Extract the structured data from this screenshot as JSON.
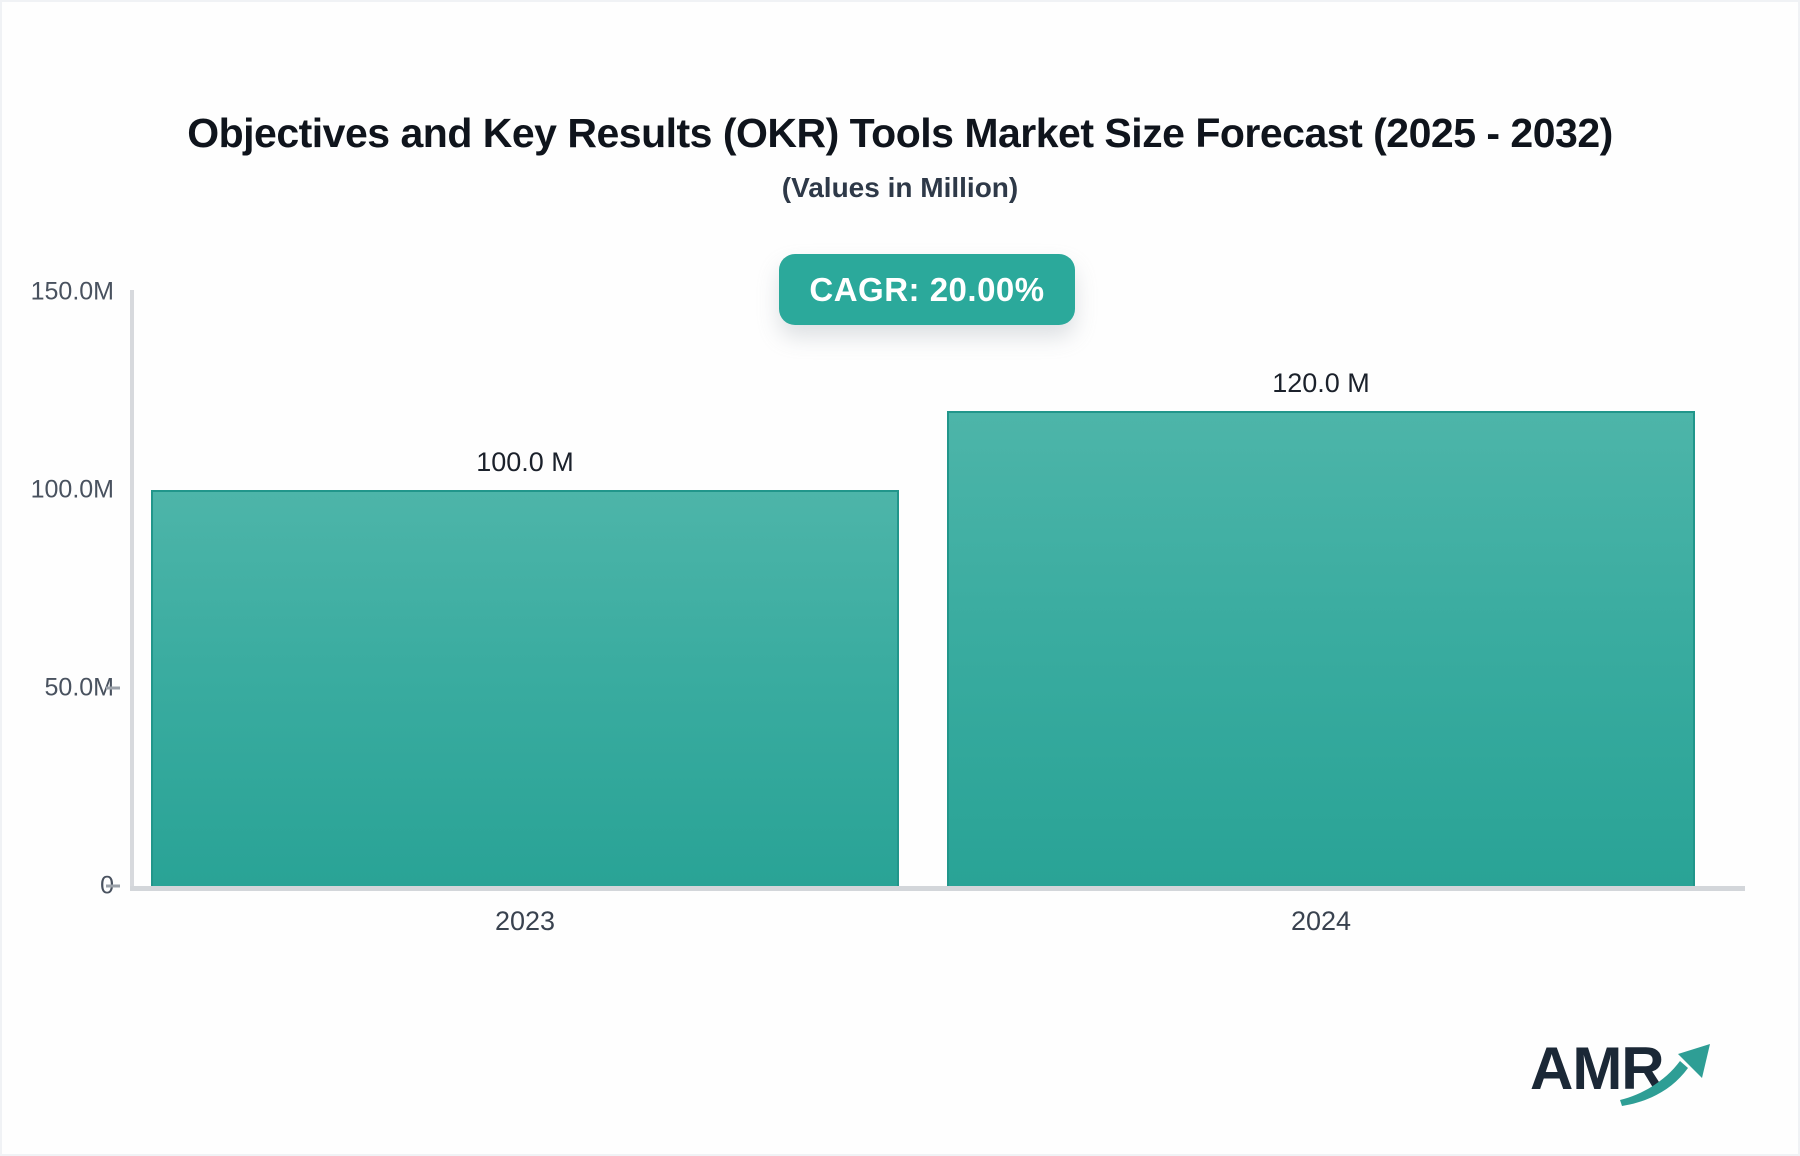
{
  "header": {
    "title": "Objectives and Key Results (OKR) Tools Market Size Forecast (2025 - 2032)",
    "subtitle": "(Values in Million)",
    "cagr_badge_label": "CAGR: 20.00%"
  },
  "chart_data": {
    "type": "bar",
    "title": "Objectives and Key Results (OKR) Tools Market Size Forecast (2025 - 2032)",
    "subtitle": "(Values in Million)",
    "unit": "Million",
    "cagr_percent": 20.0,
    "categories": [
      "2023",
      "2024"
    ],
    "values": [
      100.0,
      120.0
    ],
    "value_labels": [
      "100.0 M",
      "120.0 M"
    ],
    "ylim": [
      0,
      150
    ],
    "yticks": [
      {
        "value": 150,
        "label": "150.0M",
        "tick_mark": false
      },
      {
        "value": 100,
        "label": "100.0M",
        "tick_mark": false
      },
      {
        "value": 50,
        "label": "50.0M",
        "tick_mark": true
      },
      {
        "value": 0,
        "label": "0",
        "tick_mark": true
      }
    ],
    "grid": false,
    "legend": false,
    "colors": {
      "bar_gradient_top": "#4db5a9",
      "bar_gradient_bottom": "#29a396",
      "bar_border": "#21968b",
      "badge_background": "#2ba99b",
      "badge_text": "#ffffff",
      "axis_line": "#d5d7db",
      "title_text": "#0f141c",
      "axis_label_text": "#49525f"
    }
  },
  "logo": {
    "text": "AMR",
    "icon": "growth-arrow-icon",
    "text_color": "#1b2836",
    "arrow_color": "#2e9e95"
  }
}
